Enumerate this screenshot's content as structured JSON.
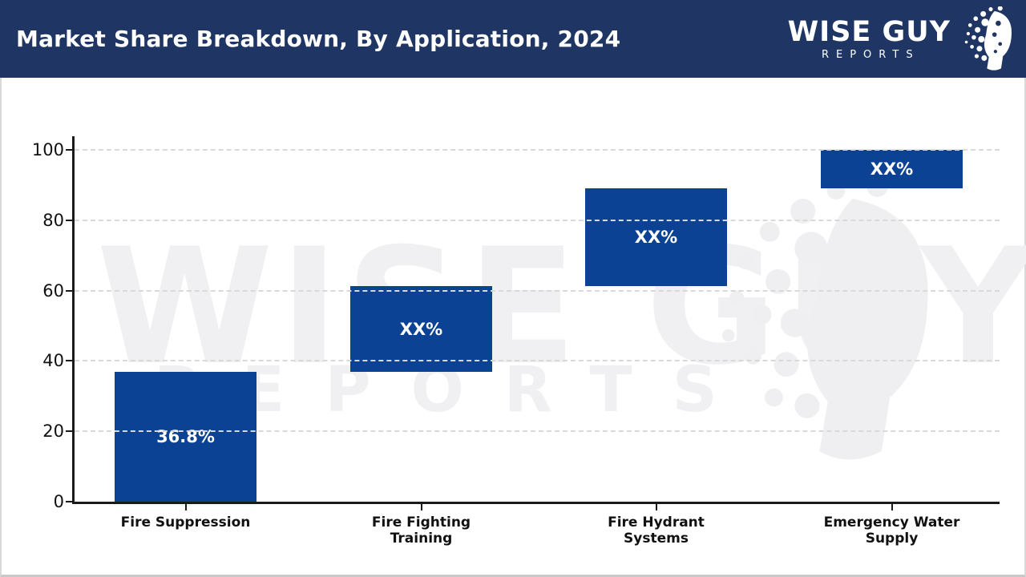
{
  "header": {
    "title": "Market Share Breakdown, By Application, 2024",
    "bg_color": "#1f3664",
    "logo": {
      "line1": "WISE GUY",
      "line2": "REPORTS"
    }
  },
  "watermark": {
    "line1": "WISE GUY",
    "line2": "REPORTS"
  },
  "chart_data": {
    "type": "bar",
    "subtype": "stepped-waterfall",
    "title": "Market Share Breakdown, By Application, 2024",
    "categories": [
      "Fire Suppression",
      "Fire Fighting Training",
      "Fire Hydrant Systems",
      "Emergency Water Supply"
    ],
    "category_lines": [
      [
        "Fire Suppression"
      ],
      [
        "Fire Fighting",
        "Training"
      ],
      [
        "Fire Hydrant",
        "Systems"
      ],
      [
        "Emergency Water",
        "Supply"
      ]
    ],
    "series": [
      {
        "name": "Market share (%)",
        "segments": [
          {
            "from": 0,
            "to": 36.8,
            "label": "36.8%"
          },
          {
            "from": 36.8,
            "to": 61.2,
            "label": "XX%"
          },
          {
            "from": 61.2,
            "to": 89.1,
            "label": "XX%"
          },
          {
            "from": 89.1,
            "to": 100,
            "label": "XX%"
          }
        ]
      }
    ],
    "yticks": [
      0,
      20,
      40,
      60,
      80,
      100
    ],
    "ylim": [
      0,
      105
    ],
    "xlabel": "",
    "ylabel": "",
    "grid": "horizontal-dashed",
    "legend": "none",
    "bar_color": "#0b4294",
    "bar_label_color": "#ffffff",
    "grid_color": "#d9d9d9",
    "axis_color": "#1a1a1a"
  }
}
